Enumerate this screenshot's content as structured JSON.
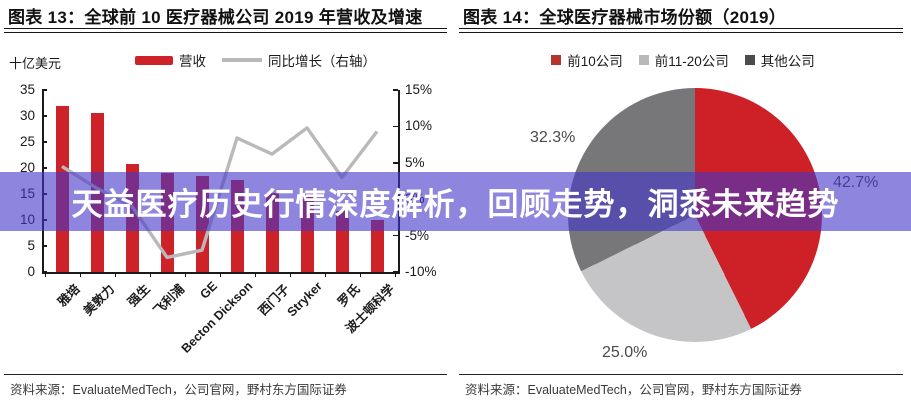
{
  "banner": {
    "text": "天益医疗历史行情深度解析，回顾走势，洞悉未来趋势",
    "bg_color": "rgba(66,53,200,0.60)",
    "text_color": "#ffffff"
  },
  "panels": {
    "left": {
      "title": "图表 13：全球前 10 医疗器械公司 2019 年营收及增速",
      "unit_label": "十亿美元",
      "legend_bar_label": "营收",
      "legend_line_label": "同比增长（右轴）",
      "source": "资料来源：EvaluateMedTech，公司官网，野村东方国际证券"
    },
    "right": {
      "title": "图表 14：全球医疗器械市场份额（2019）",
      "source": "资料来源：EvaluateMedTech，公司官网，野村东方国际证券"
    }
  },
  "chart_data": [
    {
      "type": "bar",
      "title": "全球前 10 医疗器械公司 2019 年营收及增速",
      "categories": [
        "雅培",
        "美敦力",
        "强生",
        "飞利浦",
        "GE",
        "Becton Dickson",
        "西门子",
        "Stryker",
        "罗氏",
        "波士顿科学"
      ],
      "series": [
        {
          "name": "营收",
          "type": "bar",
          "axis": "left",
          "unit": "十亿美元",
          "color": "#cd2328",
          "values": [
            32,
            30.5,
            20.8,
            19,
            18.5,
            17.7,
            15.2,
            15,
            11.7,
            10
          ]
        },
        {
          "name": "同比增长（右轴）",
          "type": "line",
          "axis": "right",
          "unit": "%",
          "color": "#b9b9bc",
          "values": [
            4.5,
            1.5,
            -1,
            -8,
            -7,
            8.4,
            6.2,
            9.8,
            3,
            9.3
          ]
        }
      ],
      "ylabel": "十亿美元",
      "ylim": [
        0,
        35
      ],
      "y_ticks": [
        0,
        5,
        10,
        15,
        20,
        25,
        30,
        35
      ],
      "y2lim": [
        -10,
        15
      ],
      "y2_ticks": [
        15,
        10,
        5,
        0,
        -5,
        -10
      ],
      "y2_suffix": "%",
      "grid": false,
      "legend_position": "top"
    },
    {
      "type": "pie",
      "title": "全球医疗器械市场份额（2019）",
      "labels": [
        "前10公司",
        "前11-20公司",
        "其他公司"
      ],
      "values": [
        42.7,
        25.0,
        32.3
      ],
      "colors": [
        "#ce2127",
        "#c5c5c8",
        "#77777a"
      ],
      "legend_colors": [
        "#b5342c",
        "#b9b9bc",
        "#4c4c4e"
      ],
      "start_angle_deg": 0,
      "legend_position": "top"
    }
  ]
}
